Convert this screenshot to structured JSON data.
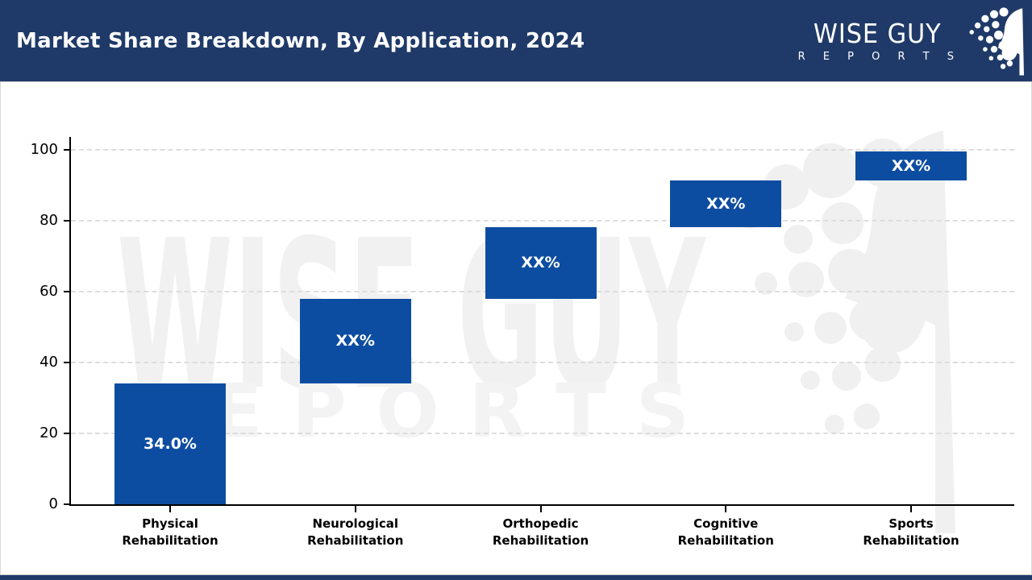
{
  "header": {
    "title": "Market Share Breakdown, By Application, 2024",
    "logo": {
      "name": "WISE GUY",
      "sub": "R E P O R T S"
    }
  },
  "watermark": {
    "big": "WISE GUY",
    "sub": "R E P O R T S"
  },
  "colors": {
    "header_bg": "#1f3a68",
    "footer_bg": "#1f3a68",
    "bar": "#0d4da1",
    "bar_label": "#ffffff",
    "grid": "#dddddd",
    "axis": "#000000",
    "watermark": "#f1f1f1"
  },
  "chart_data": {
    "type": "bar",
    "subtype": "waterfall",
    "title": "Market Share Breakdown, By Application, 2024",
    "categories": [
      "Physical Rehabilitation",
      "Neurological Rehabilitation",
      "Orthopedic Rehabilitation",
      "Cognitive Rehabilitation",
      "Sports Rehabilitation"
    ],
    "category_lines": [
      [
        "Physical",
        "Rehabilitation"
      ],
      [
        "Neurological",
        "Rehabilitation"
      ],
      [
        "Orthopedic",
        "Rehabilitation"
      ],
      [
        "Cognitive",
        "Rehabilitation"
      ],
      [
        "Sports",
        "Rehabilitation"
      ]
    ],
    "segments": [
      {
        "label": "34.0%",
        "start": 0,
        "end": 34
      },
      {
        "label": "XX%",
        "start": 34,
        "end": 58
      },
      {
        "label": "XX%",
        "start": 58,
        "end": 78
      },
      {
        "label": "XX%",
        "start": 78,
        "end": 91.3
      },
      {
        "label": "XX%",
        "start": 91.3,
        "end": 99.5
      }
    ],
    "values_pct": [
      34.0,
      24.0,
      20.0,
      13.3,
      8.2
    ],
    "yticks": [
      0,
      20,
      40,
      60,
      80,
      100
    ],
    "ylim": [
      0,
      103.5
    ],
    "xlabel": "",
    "ylabel": "",
    "grid": "dashed-horizontal",
    "legend": "none",
    "bar_color": "#0d4da1",
    "bar_label_color": "#ffffff"
  }
}
